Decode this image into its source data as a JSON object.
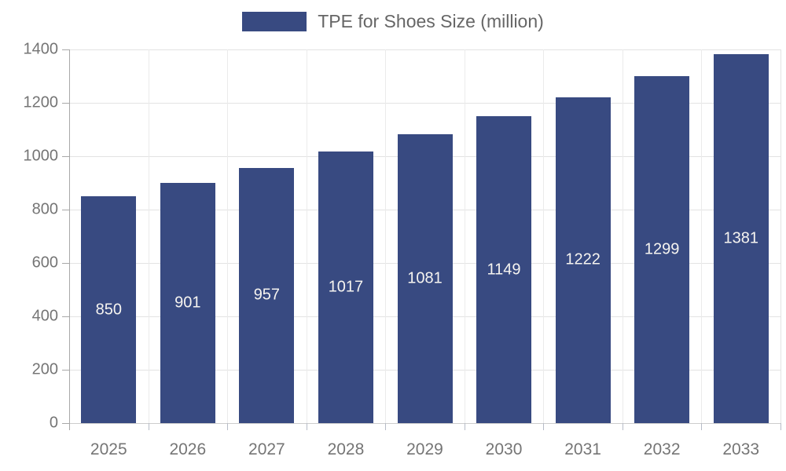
{
  "chart_data": {
    "type": "bar",
    "title": "TPE for Shoes Size (million)",
    "legend": {
      "position": "top",
      "entries": [
        "TPE for Shoes Size (million)"
      ]
    },
    "categories": [
      "2025",
      "2026",
      "2027",
      "2028",
      "2029",
      "2030",
      "2031",
      "2032",
      "2033"
    ],
    "series": [
      {
        "name": "TPE for Shoes Size (million)",
        "values": [
          850,
          901,
          957,
          1017,
          1081,
          1149,
          1222,
          1299,
          1381
        ]
      }
    ],
    "value_labels_shown": true,
    "xlabel": "",
    "ylabel": "",
    "ylim": [
      0,
      1400
    ],
    "yticks": [
      0,
      200,
      400,
      600,
      800,
      1000,
      1200,
      1400
    ],
    "grid": true,
    "colors": {
      "bar": "#384a81",
      "value_label": "#f6f4f0",
      "axis_text": "#757575",
      "legend_text": "#666666",
      "gridline": "#e3e3e3",
      "axis_line": "#a8a8a8"
    }
  }
}
